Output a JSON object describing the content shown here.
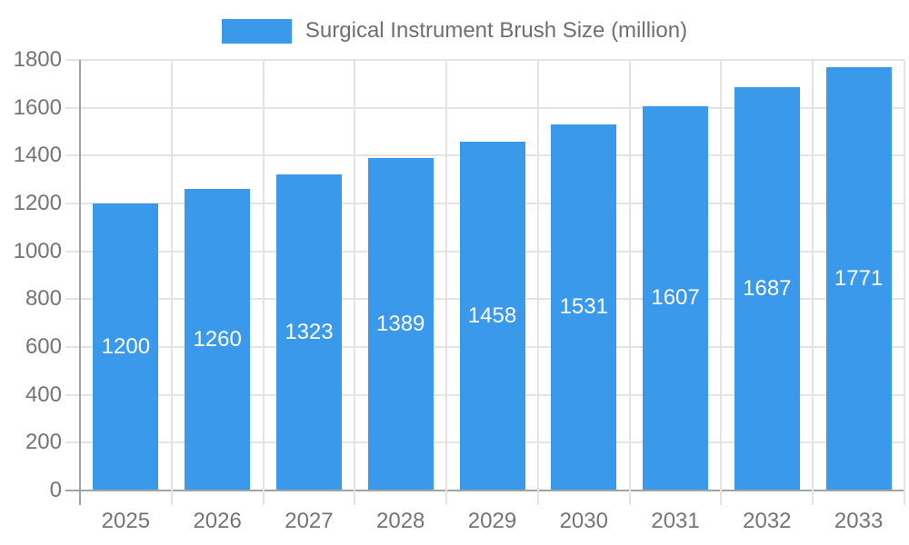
{
  "legend": {
    "label": "Surgical Instrument Brush Size (million)"
  },
  "chart_data": {
    "type": "bar",
    "title": "Surgical Instrument Brush Size (million)",
    "categories": [
      "2025",
      "2026",
      "2027",
      "2028",
      "2029",
      "2030",
      "2031",
      "2032",
      "2033"
    ],
    "series": [
      {
        "name": "Surgical Instrument Brush Size (million)",
        "values": [
          1200,
          1260,
          1323,
          1389,
          1458,
          1531,
          1607,
          1687,
          1771
        ]
      }
    ],
    "value_labels": [
      "1200",
      "1260",
      "1323",
      "1389",
      "1458",
      "1531",
      "1607",
      "1687",
      "1771"
    ],
    "xlabel": "",
    "ylabel": "",
    "ylim": [
      0,
      1800
    ],
    "ytick_step": 200,
    "ytick_labels": [
      "0",
      "200",
      "400",
      "600",
      "800",
      "1000",
      "1200",
      "1400",
      "1600",
      "1800"
    ],
    "grid": "on",
    "legend_position": "top",
    "colors": {
      "bar": "#3B99EC",
      "value_label": "#ffffff",
      "grid_line": "#e4e4e4",
      "zero_line": "#a3a3a3",
      "axis_text": "#757575",
      "legend_text": "#6f6f6f",
      "background": "#ffffff"
    }
  }
}
